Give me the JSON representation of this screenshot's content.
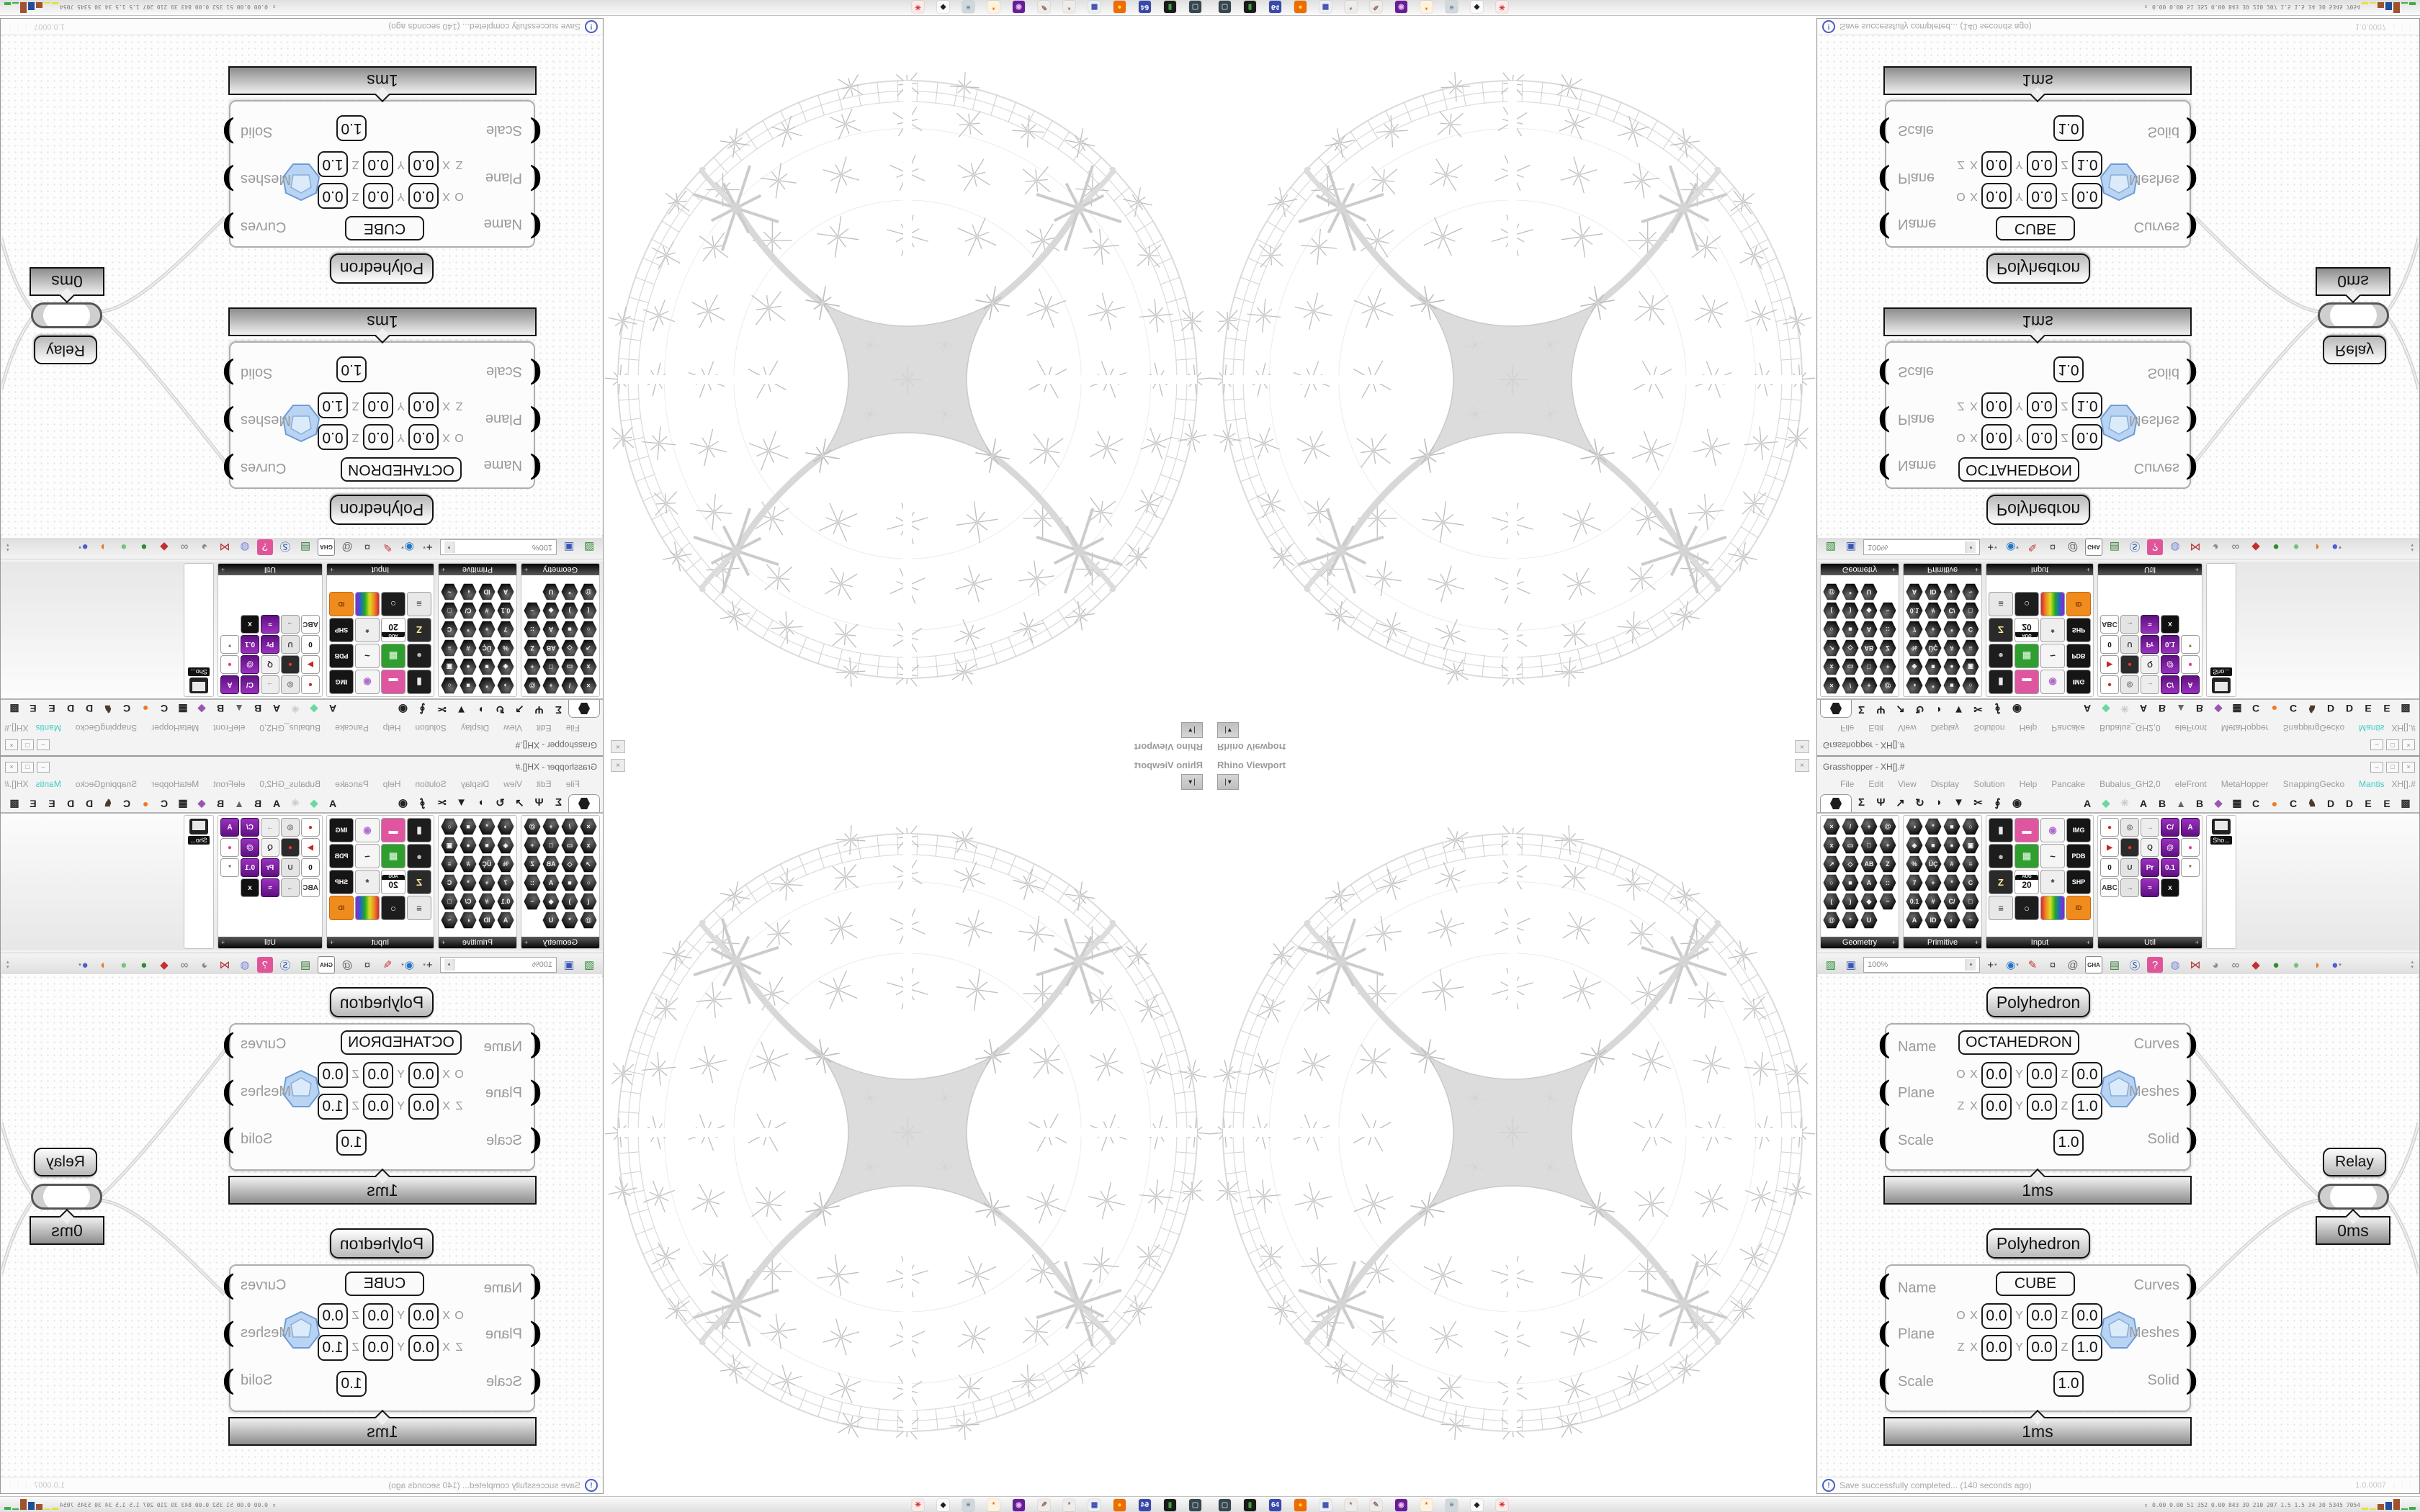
{
  "window": {
    "title": "Grasshopper - XH[].#",
    "doc_badge": "XH[].#",
    "buttons": [
      "–",
      "□",
      "×"
    ],
    "menu": [
      "File",
      "Edit",
      "View",
      "Display",
      "Solution",
      "Help",
      "Pancake",
      "Bubalus_GH2,0",
      "eleFront",
      "MetaHopper",
      "SnappingGecko",
      "Mantis"
    ],
    "menu_accent": "Mantis",
    "menu_accent_color": "#3ecec2"
  },
  "tabs": {
    "core": [
      "Σ",
      "Ψ",
      "↗",
      "↻",
      "◗",
      "▼",
      "✂",
      "∮",
      "◉"
    ],
    "plugins": [
      {
        "g": "A",
        "c": "#222",
        "n": "tab-a1"
      },
      {
        "g": "◆",
        "c": "#69d9a0",
        "n": "gem-tab-icon"
      },
      {
        "g": "✳",
        "c": "#c9c9c9",
        "n": "flower-tab-icon"
      },
      {
        "g": "A",
        "c": "#222",
        "n": "tab-a2"
      },
      {
        "g": "B",
        "c": "#222",
        "n": "tab-b1"
      },
      {
        "g": "▲",
        "c": "#666",
        "n": "mountain-tab-icon"
      },
      {
        "g": "B",
        "c": "#222",
        "n": "tab-b2"
      },
      {
        "g": "◆",
        "c": "#9a55b0",
        "n": "shield-tab-icon"
      },
      {
        "g": "▦",
        "c": "#222",
        "n": "waffle-tab-icon"
      },
      {
        "g": "C",
        "c": "#222",
        "n": "tab-c1"
      },
      {
        "g": "●",
        "c": "#f07820",
        "n": "orange-dot-tab-icon"
      },
      {
        "g": "C",
        "c": "#222",
        "n": "tab-c2"
      },
      {
        "g": "♞",
        "c": "#503828",
        "n": "bird-tab-icon"
      },
      {
        "g": "D",
        "c": "#222",
        "n": "tab-d1"
      },
      {
        "g": "D",
        "c": "#222",
        "n": "tab-d2"
      },
      {
        "g": "E",
        "c": "#222",
        "n": "tab-e1"
      },
      {
        "g": "E",
        "c": "#222",
        "n": "tab-e2"
      },
      {
        "g": "▩",
        "c": "#333",
        "n": "checker-tab-icon"
      }
    ]
  },
  "ribbon": {
    "panels": [
      {
        "label": "Geometry",
        "type": "hex",
        "cols": 4,
        "icons": [
          "×",
          "/",
          "+",
          "@",
          "x",
          "▭",
          "□",
          "+",
          "↗",
          "◇",
          "AB",
          "Z",
          "○",
          "■",
          "A",
          "::",
          "(",
          ")",
          "◆",
          "~",
          "@",
          "*",
          "U",
          ""
        ]
      },
      {
        "label": "Primitive",
        "type": "hex",
        "cols": 4,
        "icons": [
          "◑",
          "*",
          "■",
          "○",
          "◈",
          "■",
          "●",
          "▣",
          "%",
          "ÜÇ",
          "#",
          "≡",
          "7",
          "+",
          "*",
          "C",
          "0.1",
          "#",
          "C/",
          "□",
          "A",
          "ID",
          "◐",
          "~"
        ]
      },
      {
        "label": "Input",
        "type": "tiles",
        "cols": 4,
        "tiles": [
          {
            "k": "sq",
            "bg": "#1d1d1d",
            "fg": "#eaeaea",
            "g": "▮"
          },
          {
            "k": "sq",
            "bg": "#e055a0",
            "fg": "#ffffff",
            "g": "▬"
          },
          {
            "k": "sq",
            "bg": "#f5f5f5",
            "fg": "#b06ad0",
            "g": "◉"
          },
          {
            "k": "chip",
            "g": "IMG"
          },
          {
            "k": "sq",
            "bg": "#1d1d1d",
            "fg": "#bbbbbb",
            "g": "●"
          },
          {
            "k": "sq",
            "bg": "#2f9e2f",
            "fg": "#bfe8bf",
            "g": "▦"
          },
          {
            "k": "sq",
            "bg": "#f5f5f5",
            "fg": "#222222",
            "g": "~"
          },
          {
            "k": "chip",
            "g": "PDB"
          },
          {
            "k": "sq",
            "bg": "#2a2a2a",
            "fg": "#ffee99",
            "g": "Z"
          },
          {
            "k": "cal",
            "top": "AUG",
            "g": "20"
          },
          {
            "k": "sq",
            "bg": "#eeeeee",
            "fg": "#333333",
            "g": "*"
          },
          {
            "k": "chip",
            "g": "SHP"
          },
          {
            "k": "sq",
            "bg": "#e8e8e8",
            "fg": "#333333",
            "g": "≡"
          },
          {
            "k": "sq",
            "bg": "#1d1d1d",
            "fg": "#eeeeee",
            "g": "○"
          },
          {
            "k": "stripes",
            "g": ""
          },
          {
            "k": "tag",
            "g": "ID"
          }
        ]
      },
      {
        "label": "Util",
        "type": "tiles",
        "cols": 5,
        "small": true,
        "tiles": [
          {
            "k": "sq",
            "bg": "#ffffff",
            "fg": "#c22a2a",
            "g": "●"
          },
          {
            "k": "sq",
            "bg": "#e8e8e8",
            "fg": "#777777",
            "g": "◎"
          },
          {
            "k": "sq",
            "bg": "#ededed",
            "fg": "#888888",
            "g": "→"
          },
          {
            "k": "pchip",
            "g": "C/"
          },
          {
            "k": "pchip",
            "g": "A"
          },
          {
            "k": "sq",
            "bg": "#ffffff",
            "fg": "#c22a2a",
            "g": "▶"
          },
          {
            "k": "sq",
            "bg": "#2b2b2b",
            "fg": "#ee3333",
            "g": "●"
          },
          {
            "k": "sq",
            "bg": "#f2f2f2",
            "fg": "#333333",
            "g": "Q"
          },
          {
            "k": "pchip",
            "g": "@"
          },
          {
            "k": "sq",
            "bg": "#ffffff",
            "fg": "#d8488f",
            "g": "●"
          },
          {
            "k": "sq",
            "bg": "#ffffff",
            "fg": "#111111",
            "g": "0"
          },
          {
            "k": "sq",
            "bg": "#e4e4e4",
            "fg": "#444444",
            "g": "U"
          },
          {
            "k": "pchip",
            "g": "Pr"
          },
          {
            "k": "pchip",
            "g": "0.1"
          },
          {
            "k": "sq",
            "bg": "#ffffff",
            "fg": "#7a5230",
            "g": "*"
          },
          {
            "k": "sq",
            "bg": "#ffffff",
            "fg": "#333333",
            "g": "ABC"
          },
          {
            "k": "sq",
            "bg": "#e4e4e4",
            "fg": "#555555",
            "g": "→"
          },
          {
            "k": "pchip",
            "g": "≈"
          },
          {
            "k": "sq",
            "bg": "#111111",
            "fg": "#ffffff",
            "g": "x"
          },
          {
            "k": "none",
            "g": ""
          }
        ]
      },
      {
        "label": "Sho...",
        "type": "show"
      }
    ]
  },
  "toolbar": {
    "zoom": "100%",
    "icons": [
      {
        "name": "open-file-icon",
        "g": "▨",
        "c": "#2f8f33"
      },
      {
        "name": "save-file-icon",
        "g": "▣",
        "c": "#3a55b4"
      },
      {
        "name": "zoom-extents-icon",
        "g": "+",
        "c": "#222222",
        "dd": true
      },
      {
        "name": "preview-eye-icon",
        "g": "◉",
        "c": "#2277cc",
        "dd": true
      },
      {
        "name": "sketch-tool-icon",
        "g": "✎",
        "c": "#c23333"
      },
      {
        "name": "plug-icon",
        "g": "¤",
        "c": "#444444"
      },
      {
        "name": "at-icon",
        "g": "@",
        "c": "#666666"
      },
      {
        "name": "gha-badge-icon",
        "g": "GHA",
        "c": "#333333",
        "badge": true
      },
      {
        "name": "export-doc-icon",
        "g": "▤",
        "c": "#3a7d3a"
      },
      {
        "name": "find-icon",
        "g": "Ⓢ",
        "c": "#2a5db0"
      },
      {
        "name": "help-box-icon",
        "g": "?",
        "c": "#ffffff",
        "bg": "#e0559a"
      },
      {
        "name": "bulb-icon",
        "g": "◍",
        "c": "#7c86d8"
      },
      {
        "name": "ribbon-x-icon",
        "g": "⋈",
        "c": "#b33333"
      },
      {
        "name": "cluster-icon",
        "g": "◕",
        "c": "#888888"
      },
      {
        "name": "ovals-icon",
        "g": "∞",
        "c": "#777777"
      },
      {
        "name": "gem-icon",
        "g": "◆",
        "c": "#c2302f"
      },
      {
        "name": "pin-green-icon",
        "g": "●",
        "c": "#2e8b2e"
      },
      {
        "name": "pin-light-icon",
        "g": "●",
        "c": "#7ac27a"
      },
      {
        "name": "sphere-half-icon",
        "g": "◑",
        "c": "#e87820"
      },
      {
        "name": "selection-oval-icon",
        "g": "●",
        "c": "#4a5fd0",
        "dd": true
      }
    ]
  },
  "canvas": {
    "components": [
      {
        "nickname": "Polyhedron",
        "name_label": "Name",
        "plane_label": "Plane",
        "scale_label": "Scale",
        "out1": "Curves",
        "out2": "Meshes",
        "out3": "Solid",
        "name_value": "OCTAHEDRON",
        "plane": {
          "row1": {
            "label": "O",
            "x": "0.0",
            "y": "0.0",
            "z": "0.0"
          },
          "row2": {
            "label": "Z",
            "x": "0.0",
            "y": "0.0",
            "z": "1.0"
          }
        },
        "scale_value": "1.0",
        "time": "1ms"
      },
      {
        "nickname": "Polyhedron",
        "name_label": "Name",
        "plane_label": "Plane",
        "scale_label": "Scale",
        "out1": "Curves",
        "out2": "Meshes",
        "out3": "Solid",
        "name_value": "CUBE",
        "plane": {
          "row1": {
            "label": "O",
            "x": "0.0",
            "y": "0.0",
            "z": "0.0"
          },
          "row2": {
            "label": "Z",
            "x": "0.0",
            "y": "0.0",
            "z": "1.0"
          }
        },
        "scale_value": "1.0",
        "time": "1ms"
      }
    ],
    "axis": {
      "x": "X",
      "y": "Y",
      "z": "Z"
    },
    "relay": {
      "label": "Relay",
      "time": "0ms"
    }
  },
  "statusbar": {
    "icon": "!",
    "message": "Save successfully completed... (140 seconds ago)",
    "version": "1.0.0007",
    "grip": "⋮⋮⋮"
  },
  "viewport": {
    "title": "Rhino Viewport",
    "close_glyph": "×",
    "dropdown_glyph": "▾"
  },
  "taskbar": {
    "stats_prefix": "↕",
    "stats": "0.00 0.00  51  352 0.00 843  39  210 207  1.5  1.5  34  30  5345 7054",
    "icons": [
      {
        "name": "terminal-monitor-icon",
        "bg": "#37474f",
        "fg": "#b0bec5",
        "g": "▢"
      },
      {
        "name": "green-monitor-icon",
        "bg": "#1b1b1b",
        "fg": "#43a047",
        "g": "▮"
      },
      {
        "name": "floppy-64-icon",
        "bg": "#3949ab",
        "fg": "#ffffff",
        "g": "64"
      },
      {
        "name": "firefox-icon",
        "bg": "#ef6c00",
        "fg": "#ffd54f",
        "g": "●"
      },
      {
        "name": "calculator-icon",
        "bg": "#eceff1",
        "fg": "#3949ab",
        "g": "▦"
      },
      {
        "name": "palette-icon",
        "bg": "#efebe9",
        "fg": "#8d6e63",
        "g": "*"
      },
      {
        "name": "palette-brush-icon",
        "bg": "#efebe9",
        "fg": "#8d6e63",
        "g": "✎"
      },
      {
        "name": "gimp-icon",
        "bg": "#6a1b9a",
        "fg": "#e1bee7",
        "g": "◉"
      },
      {
        "name": "blender-icon",
        "bg": "#fff3e0",
        "fg": "#ef6c00",
        "g": "*"
      },
      {
        "name": "text-editor-icon",
        "bg": "#cfd8dc",
        "fg": "#455a64",
        "g": "≡"
      },
      {
        "name": "inkscape-icon",
        "bg": "#fafafa",
        "fg": "#212121",
        "g": "◆"
      },
      {
        "name": "ruby-gear-icon",
        "bg": "#fbe9e7",
        "fg": "#c62828",
        "g": "✳"
      }
    ]
  }
}
